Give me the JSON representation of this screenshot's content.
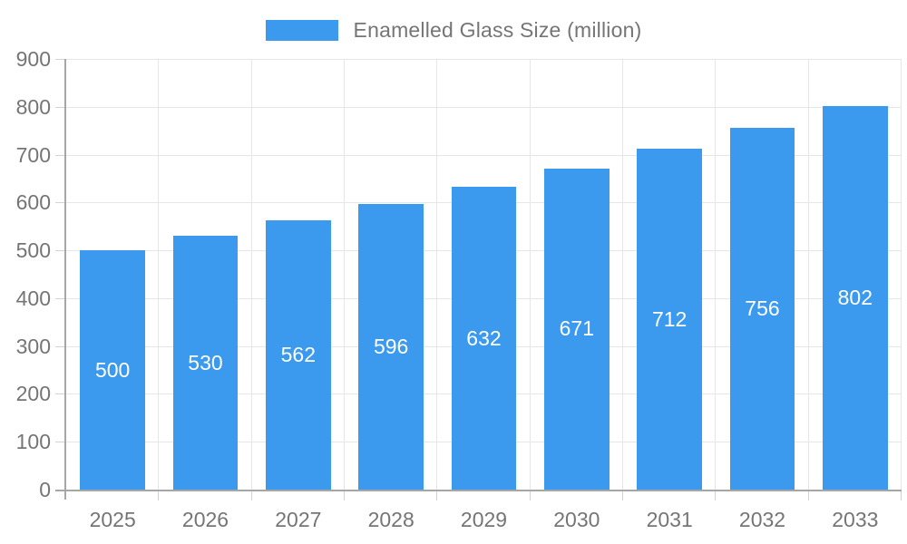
{
  "legend": {
    "label": "Enamelled Glass Size (million)",
    "position": "top"
  },
  "chart_data": {
    "type": "bar",
    "title": "",
    "xlabel": "",
    "ylabel": "",
    "categories": [
      "2025",
      "2026",
      "2027",
      "2028",
      "2029",
      "2030",
      "2031",
      "2032",
      "2033"
    ],
    "values": [
      500,
      530,
      562,
      596,
      632,
      671,
      712,
      756,
      802
    ],
    "series_name": "Enamelled Glass Size (million)",
    "ylim": [
      0,
      900
    ],
    "yticks": [
      0,
      100,
      200,
      300,
      400,
      500,
      600,
      700,
      800,
      900
    ],
    "grid": true,
    "bar_width_fraction": 0.7,
    "value_label_position": "center-inside",
    "legend_position": "top"
  },
  "colors": {
    "bar": "#3B99EE",
    "gridline": "#e6e6e6",
    "tick": "#d2d2d2",
    "axis": "#a6a6a6",
    "text": "#757575",
    "value_label": "#ffffff",
    "background": "#ffffff"
  }
}
